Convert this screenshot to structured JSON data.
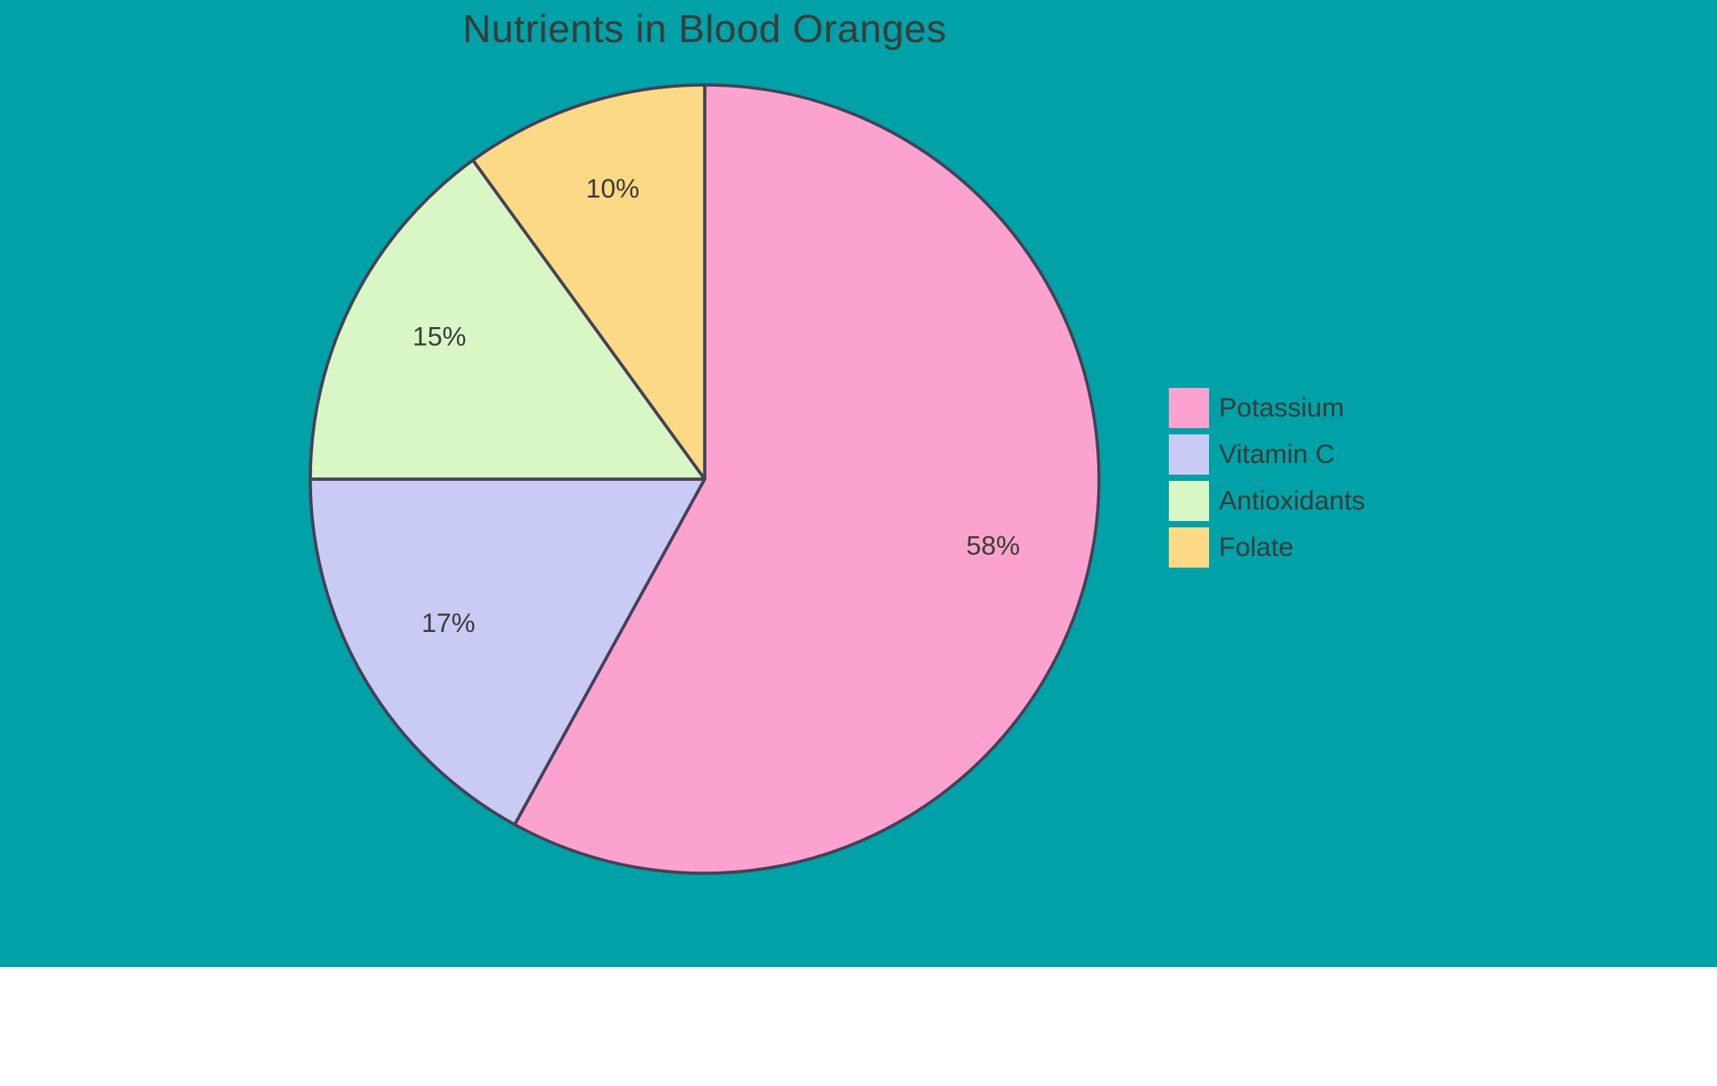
{
  "title": "Nutrients in Blood Oranges",
  "chart_data": {
    "type": "pie",
    "title": "Nutrients in Blood Oranges",
    "labels": [
      "Potassium",
      "Vitamin C",
      "Antioxidants",
      "Folate"
    ],
    "values": [
      58,
      17,
      15,
      10
    ],
    "value_labels": [
      "58%",
      "17%",
      "15%",
      "10%"
    ],
    "unit": "%",
    "colors": [
      "#FBA3CE",
      "#C9CBF4",
      "#D9F7C5",
      "#FCDA85"
    ],
    "start_angle": "12-oclock",
    "direction": "clockwise",
    "legend_position": "right",
    "style": {
      "background_color": "#00A1A7",
      "slice_outline_color": "#454057",
      "label_text_color": "#3B3B3B",
      "title_text_color": "#3B3B3B",
      "legend_text_color": "#3B3B3B"
    }
  }
}
